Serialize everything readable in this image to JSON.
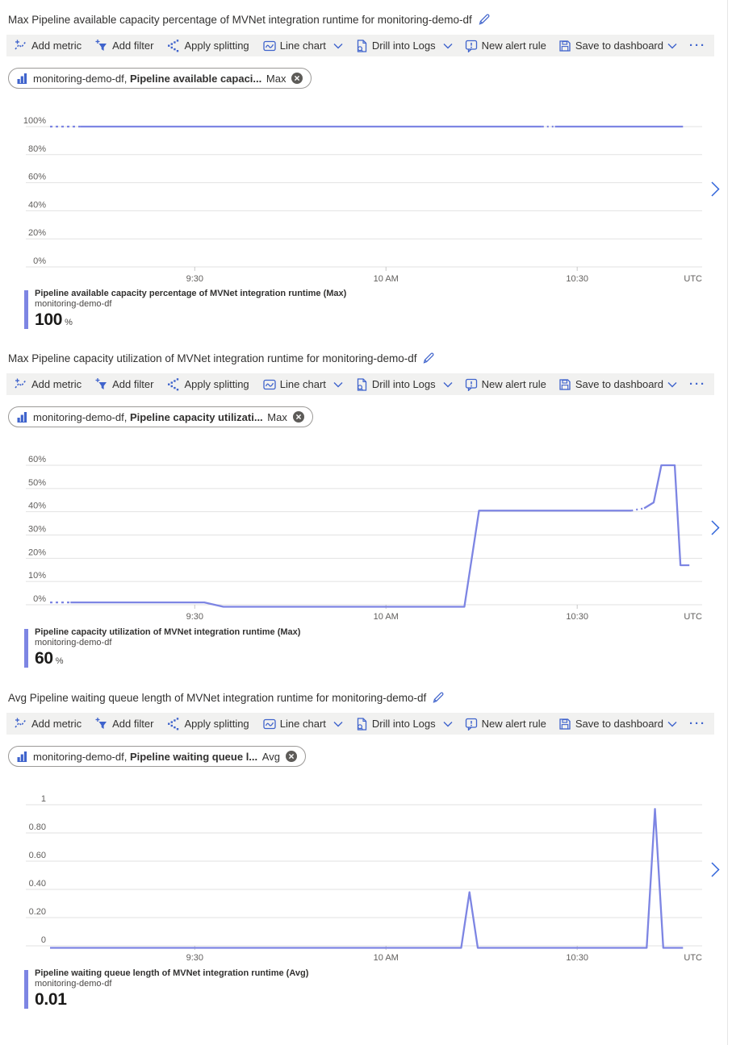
{
  "colors": {
    "line": "#7d85e3",
    "accent_blue": "#3f63cc",
    "grid": "#e2e2e2",
    "toolbar_bg": "#f1f1f0",
    "text_dark": "#323130",
    "text_muted": "#605e5c"
  },
  "toolbar": {
    "add_metric": "Add metric",
    "add_filter": "Add filter",
    "apply_splitting": "Apply splitting",
    "line_chart": "Line chart",
    "drill_into_logs": "Drill into Logs",
    "new_alert_rule": "New alert rule",
    "save_to_dashboard": "Save to dashboard",
    "more": "···"
  },
  "charts": [
    {
      "title": "Max Pipeline available capacity percentage of MVNet integration runtime for monitoring-demo-df",
      "pill": {
        "resource": "monitoring-demo-df,",
        "metric": "Pipeline available capaci...",
        "aggregation": "Max"
      },
      "legend": {
        "metric_label": "Pipeline available capacity percentage of MVNet integration runtime (Max)",
        "resource": "monitoring-demo-df",
        "value": "100",
        "unit": "%"
      },
      "chart_data": {
        "type": "line",
        "title": "Max Pipeline available capacity percentage of MVNet integration runtime for monitoring-demo-df",
        "unit": "percent",
        "timezone": "UTC",
        "x_domain_minutes": [
          547.3,
          649.6
        ],
        "x_ticks": [
          {
            "t": 570,
            "label": "9:30"
          },
          {
            "t": 600,
            "label": "10 AM"
          },
          {
            "t": 630,
            "label": "10:30"
          }
        ],
        "x_end_label": "UTC",
        "ylim": [
          0,
          100
        ],
        "yticks": [
          {
            "v": 0,
            "label": "0%"
          },
          {
            "v": 20,
            "label": "20%"
          },
          {
            "v": 40,
            "label": "40%"
          },
          {
            "v": 60,
            "label": "60%"
          },
          {
            "v": 80,
            "label": "80%"
          },
          {
            "v": 100,
            "label": "100%"
          }
        ],
        "series": [
          {
            "name": "Pipeline available capacity percentage (Max) - monitoring-demo-df",
            "segments": [
              {
                "style": "dashed",
                "points": [
                  [
                    547.3,
                    100
                  ],
                  [
                    552.0,
                    100
                  ]
                ]
              },
              {
                "style": "solid",
                "points": [
                  [
                    552.0,
                    100
                  ],
                  [
                    624.5,
                    100
                  ]
                ]
              },
              {
                "style": "dotted",
                "points": [
                  [
                    624.5,
                    100
                  ],
                  [
                    626.5,
                    100
                  ]
                ]
              },
              {
                "style": "solid",
                "points": [
                  [
                    626.5,
                    100
                  ],
                  [
                    646.6,
                    100
                  ]
                ]
              }
            ]
          }
        ]
      }
    },
    {
      "title": "Max Pipeline capacity utilization of MVNet integration runtime for monitoring-demo-df",
      "pill": {
        "resource": "monitoring-demo-df,",
        "metric": "Pipeline capacity utilizati...",
        "aggregation": "Max"
      },
      "legend": {
        "metric_label": "Pipeline capacity utilization of MVNet integration runtime (Max)",
        "resource": "monitoring-demo-df",
        "value": "60",
        "unit": "%"
      },
      "chart_data": {
        "type": "line",
        "title": "Max Pipeline capacity utilization of MVNet integration runtime for monitoring-demo-df",
        "unit": "percent",
        "timezone": "UTC",
        "x_domain_minutes": [
          547.3,
          649.6
        ],
        "x_ticks": [
          {
            "t": 570,
            "label": "9:30"
          },
          {
            "t": 600,
            "label": "10 AM"
          },
          {
            "t": 630,
            "label": "10:30"
          }
        ],
        "x_end_label": "UTC",
        "ylim": [
          0,
          60
        ],
        "yticks": [
          {
            "v": 0,
            "label": "0%"
          },
          {
            "v": 10,
            "label": "10%"
          },
          {
            "v": 20,
            "label": "20%"
          },
          {
            "v": 30,
            "label": "30%"
          },
          {
            "v": 40,
            "label": "40%"
          },
          {
            "v": 50,
            "label": "50%"
          },
          {
            "v": 60,
            "label": "60%"
          }
        ],
        "series": [
          {
            "name": "Pipeline capacity utilization (Max) - monitoring-demo-df",
            "segments": [
              {
                "style": "dashed",
                "points": [
                  [
                    547.3,
                    1
                  ],
                  [
                    550.5,
                    1
                  ]
                ]
              },
              {
                "style": "solid",
                "points": [
                  [
                    550.5,
                    1
                  ],
                  [
                    571.5,
                    1
                  ],
                  [
                    574.5,
                    0
                  ],
                  [
                    612.3,
                    0
                  ],
                  [
                    614.6,
                    40.5
                  ],
                  [
                    638.5,
                    40.5
                  ]
                ]
              },
              {
                "style": "dotted",
                "points": [
                  [
                    638.5,
                    40.5
                  ],
                  [
                    640.5,
                    41.5
                  ]
                ]
              },
              {
                "style": "solid",
                "points": [
                  [
                    640.5,
                    41.5
                  ],
                  [
                    642.0,
                    44
                  ],
                  [
                    643.2,
                    60
                  ],
                  [
                    645.3,
                    60
                  ],
                  [
                    646.2,
                    17
                  ],
                  [
                    647.6,
                    17
                  ]
                ]
              }
            ]
          }
        ]
      }
    },
    {
      "title": "Avg Pipeline waiting queue length of MVNet integration runtime for monitoring-demo-df",
      "pill": {
        "resource": "monitoring-demo-df,",
        "metric": "Pipeline waiting queue l...",
        "aggregation": "Avg"
      },
      "legend": {
        "metric_label": "Pipeline waiting queue length of MVNet integration runtime (Avg)",
        "resource": "monitoring-demo-df",
        "value": "0.01",
        "unit": ""
      },
      "chart_data": {
        "type": "line",
        "title": "Avg Pipeline waiting queue length of MVNet integration runtime for monitoring-demo-df",
        "unit": "count",
        "timezone": "UTC",
        "x_domain_minutes": [
          547.3,
          649.6
        ],
        "x_ticks": [
          {
            "t": 570,
            "label": "9:30"
          },
          {
            "t": 600,
            "label": "10 AM"
          },
          {
            "t": 630,
            "label": "10:30"
          }
        ],
        "x_end_label": "UTC",
        "ylim": [
          0,
          1
        ],
        "yticks": [
          {
            "v": 0,
            "label": "0"
          },
          {
            "v": 0.2,
            "label": "0.20"
          },
          {
            "v": 0.4,
            "label": "0.40"
          },
          {
            "v": 0.6,
            "label": "0.60"
          },
          {
            "v": 0.8,
            "label": "0.80"
          },
          {
            "v": 1,
            "label": "1"
          }
        ],
        "series": [
          {
            "name": "Pipeline waiting queue length (Avg) - monitoring-demo-df",
            "segments": [
              {
                "style": "solid",
                "points": [
                  [
                    547.3,
                    0
                  ],
                  [
                    611.8,
                    0
                  ],
                  [
                    613.1,
                    0.38
                  ],
                  [
                    614.4,
                    0
                  ],
                  [
                    640.9,
                    0
                  ],
                  [
                    642.2,
                    0.97
                  ],
                  [
                    643.5,
                    0
                  ],
                  [
                    646.6,
                    0
                  ]
                ]
              }
            ]
          }
        ]
      }
    }
  ]
}
